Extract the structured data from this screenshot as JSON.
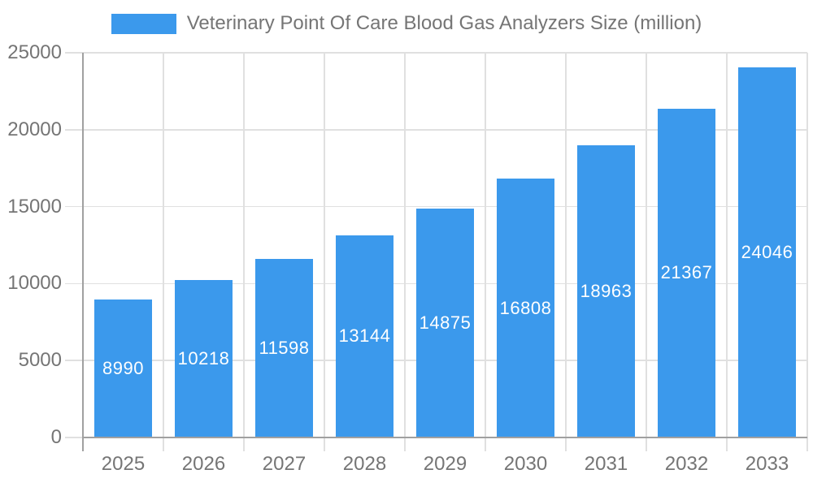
{
  "chart_data": {
    "type": "bar",
    "title": "Veterinary Point Of Care Blood Gas Analyzers Size (million)",
    "categories": [
      "2025",
      "2026",
      "2027",
      "2028",
      "2029",
      "2030",
      "2031",
      "2032",
      "2033"
    ],
    "values": [
      8990,
      10218,
      11598,
      13144,
      14875,
      16808,
      18963,
      21367,
      24046
    ],
    "xlabel": "",
    "ylabel": "",
    "ylim": [
      0,
      25000
    ],
    "yticks": [
      0,
      5000,
      10000,
      15000,
      20000,
      25000
    ],
    "grid": true,
    "legend_position": "top",
    "value_label_position": "inside-center",
    "colors": {
      "bar": "#3B99EC",
      "grid": "#E0E0E0",
      "axis": "#A0A0A0",
      "tick_text": "#757575",
      "legend_text": "#757575",
      "value_text": "#FFFFFF",
      "background": "#FFFFFF"
    }
  }
}
